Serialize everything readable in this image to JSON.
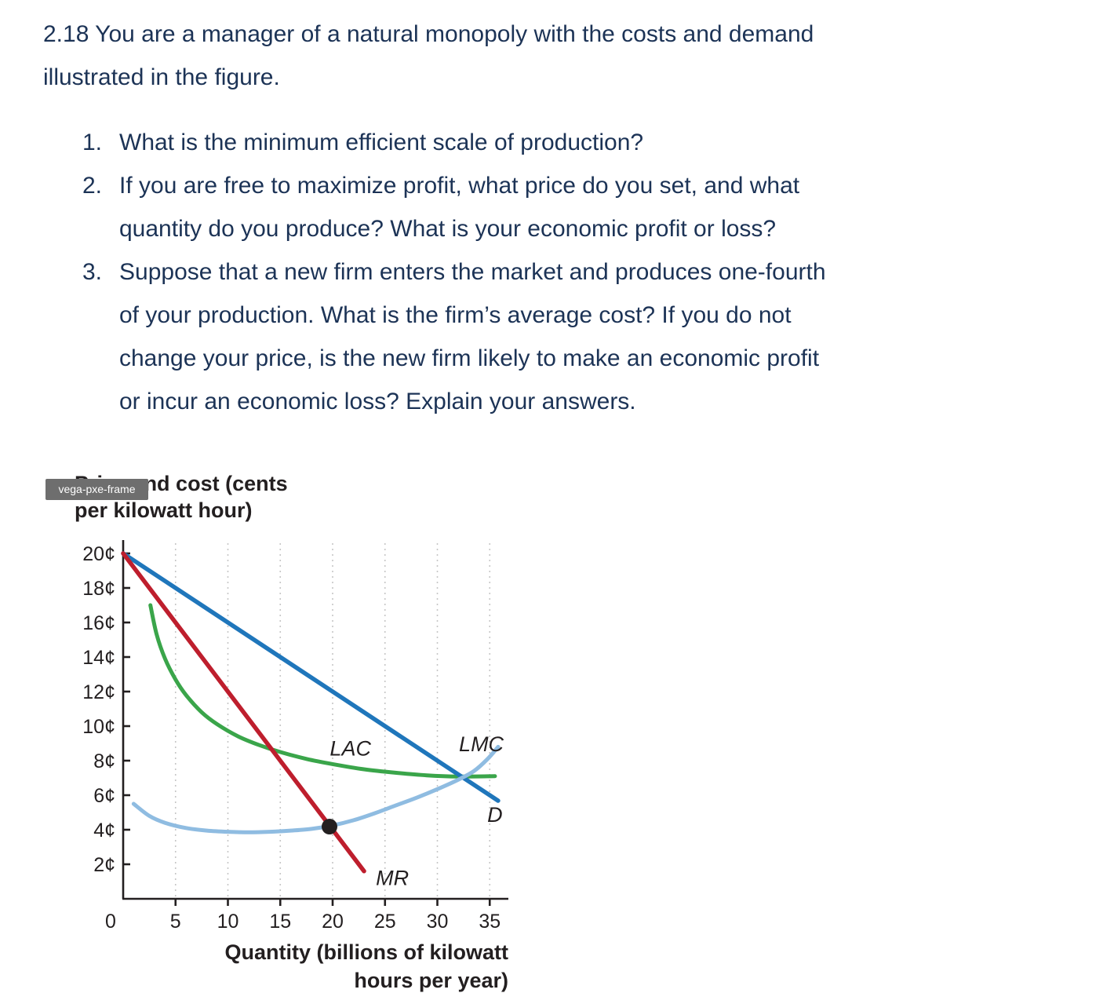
{
  "problem": {
    "intro_lines": [
      "2.18 You are a manager of a natural monopoly with the costs and demand",
      "illustrated in the figure."
    ],
    "questions": [
      {
        "number": "1.",
        "lines": [
          "What is the minimum efficient scale of production?"
        ]
      },
      {
        "number": "2.",
        "lines": [
          "If you are free to maximize profit, what price do you set, and what",
          "quantity do you produce? What is your economic profit or loss?"
        ]
      },
      {
        "number": "3.",
        "lines": [
          "Suppose that a new firm enters the market and produces one-fourth",
          "of your production. What is the firm’s average cost? If you do not",
          "change your price, is the new firm likely to make an economic profit",
          "or incur an economic loss? Explain your answers."
        ]
      }
    ]
  },
  "overlay": {
    "badge_text": "vega-pxe-frame"
  },
  "chart_data": {
    "type": "line",
    "title": "",
    "ylabel_line1": "Price and cost (cents",
    "ylabel_line2": "per kilowatt hour)",
    "xlabel_line1": "Quantity (billions of kilowatt",
    "xlabel_line2": "hours per year)",
    "xlim": [
      0,
      36.5
    ],
    "ylim": [
      0,
      21
    ],
    "grid": "vertical-dashed",
    "origin_label": "0",
    "x_gridlines": [
      5,
      10,
      15,
      20,
      25,
      30,
      35
    ],
    "x_ticks": [
      {
        "value": 5,
        "label": "5"
      },
      {
        "value": 10,
        "label": "10"
      },
      {
        "value": 15,
        "label": "15"
      },
      {
        "value": 20,
        "label": "20"
      },
      {
        "value": 25,
        "label": "25"
      },
      {
        "value": 30,
        "label": "30"
      },
      {
        "value": 35,
        "label": "35"
      }
    ],
    "y_ticks": [
      {
        "value": 2,
        "label": "2¢"
      },
      {
        "value": 4,
        "label": "4¢"
      },
      {
        "value": 6,
        "label": "6¢"
      },
      {
        "value": 8,
        "label": "8¢"
      },
      {
        "value": 10,
        "label": "10¢"
      },
      {
        "value": 12,
        "label": "12¢"
      },
      {
        "value": 14,
        "label": "14¢"
      },
      {
        "value": 16,
        "label": "16¢"
      },
      {
        "value": 18,
        "label": "18¢"
      },
      {
        "value": 20,
        "label": "20¢"
      }
    ],
    "series": [
      {
        "name": "LAC",
        "color": "#3aa54a",
        "width": 5,
        "points": [
          [
            2.6,
            17
          ],
          [
            3.2,
            15.3
          ],
          [
            4,
            13.9
          ],
          [
            5,
            12.7
          ],
          [
            6,
            11.8
          ],
          [
            7.5,
            10.8
          ],
          [
            9,
            10.1
          ],
          [
            11,
            9.4
          ],
          [
            13,
            8.9
          ],
          [
            15,
            8.5
          ],
          [
            17.5,
            8.1
          ],
          [
            20,
            7.8
          ],
          [
            23,
            7.5
          ],
          [
            26,
            7.3
          ],
          [
            29,
            7.15
          ],
          [
            32,
            7.08
          ],
          [
            35.5,
            7.1
          ]
        ],
        "label": {
          "text": "LAC",
          "x": 21.7,
          "y": 8.3
        }
      },
      {
        "name": "D",
        "color": "#1f76bb",
        "width": 5.5,
        "points": [
          [
            0,
            20
          ],
          [
            35.8,
            5.68
          ]
        ],
        "label": {
          "text": "D",
          "x": 35.5,
          "y": 4.45
        }
      },
      {
        "name": "LMC",
        "color": "#8fbce1",
        "width": 5,
        "points": [
          [
            1,
            5.5
          ],
          [
            2.5,
            4.8
          ],
          [
            4,
            4.4
          ],
          [
            6,
            4.1
          ],
          [
            8,
            3.95
          ],
          [
            10,
            3.88
          ],
          [
            12,
            3.85
          ],
          [
            14,
            3.88
          ],
          [
            16,
            3.95
          ],
          [
            18,
            4.05
          ],
          [
            20,
            4.25
          ],
          [
            22,
            4.55
          ],
          [
            24,
            4.95
          ],
          [
            26,
            5.4
          ],
          [
            28,
            5.85
          ],
          [
            30,
            6.35
          ],
          [
            32,
            6.9
          ],
          [
            33.5,
            7.4
          ],
          [
            34.8,
            8.1
          ],
          [
            35.8,
            8.8
          ]
        ],
        "label": {
          "text": "LMC",
          "x": 34.2,
          "y": 8.55
        }
      },
      {
        "name": "MR",
        "color": "#be1e2d",
        "width": 5.5,
        "points": [
          [
            0,
            20
          ],
          [
            23,
            1.6
          ]
        ],
        "label": {
          "text": "MR",
          "x": 25.7,
          "y": 0.8
        }
      }
    ],
    "point": {
      "x": 19.7,
      "y": 4.18,
      "r": 10,
      "color": "#231f20",
      "name": "mr-lmc-intersection"
    }
  }
}
